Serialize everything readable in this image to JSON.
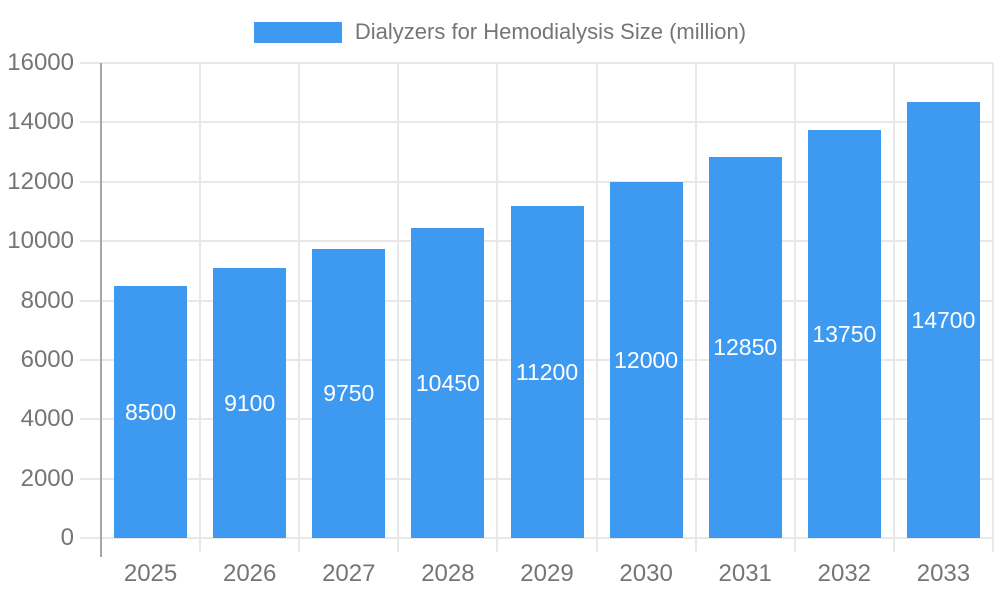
{
  "legend": {
    "label": "Dialyzers for Hemodialysis Size (million)"
  },
  "colors": {
    "bar": "#3d9af0",
    "axis_text": "#757575",
    "grid_line": "#e8e8e8",
    "axis_line": "#a6a6a6",
    "value_label": "#ffffff",
    "background": "#ffffff"
  },
  "chart_data": {
    "type": "bar",
    "title": "Dialyzers for Hemodialysis Size (million)",
    "categories": [
      "2025",
      "2026",
      "2027",
      "2028",
      "2029",
      "2030",
      "2031",
      "2032",
      "2033"
    ],
    "values": [
      8500,
      9100,
      9750,
      10450,
      11200,
      12000,
      12850,
      13750,
      14700
    ],
    "series": [
      {
        "name": "Dialyzers for Hemodialysis Size (million)",
        "values": [
          8500,
          9100,
          9750,
          10450,
          11200,
          12000,
          12850,
          13750,
          14700
        ]
      }
    ],
    "xlabel": "",
    "ylabel": "",
    "ylim": [
      0,
      16000
    ],
    "yticks": [
      0,
      2000,
      4000,
      6000,
      8000,
      10000,
      12000,
      14000,
      16000
    ],
    "grid": true,
    "legend_position": "top",
    "value_labels": "inside-center"
  }
}
